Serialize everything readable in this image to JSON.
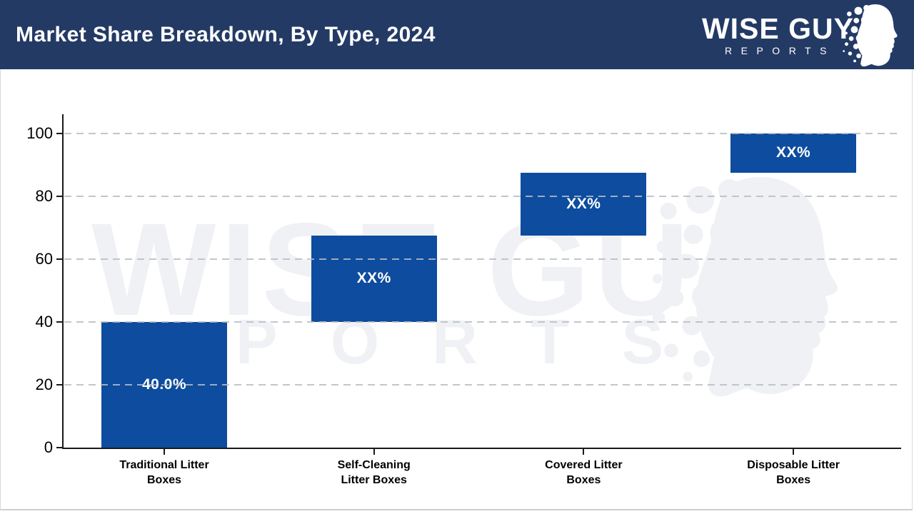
{
  "header": {
    "title": "Market Share Breakdown, By Type, 2024",
    "brand": {
      "name": "WISE GUY",
      "sub": "REPORTS"
    }
  },
  "watermark": {
    "line1": "WISE GU",
    "line2": "PORTS"
  },
  "chart_data": {
    "type": "bar",
    "variant": "waterfall",
    "title": "Market Share Breakdown, By Type, 2024",
    "categories": [
      "Traditional Litter Boxes",
      "Self-Cleaning Litter Boxes",
      "Covered Litter Boxes",
      "Disposable Litter Boxes"
    ],
    "category_lines": [
      [
        "Traditional Litter",
        "Boxes"
      ],
      [
        "Self-Cleaning",
        "Litter Boxes"
      ],
      [
        "Covered Litter",
        "Boxes"
      ],
      [
        "Disposable Litter",
        "Boxes"
      ]
    ],
    "segments": [
      {
        "category": "Traditional Litter Boxes",
        "start": 0,
        "end": 40,
        "value": 40.0,
        "label": "40.0%"
      },
      {
        "category": "Self-Cleaning Litter Boxes",
        "start": 40,
        "end": 67.5,
        "value": 27.5,
        "label": "XX%"
      },
      {
        "category": "Covered Litter Boxes",
        "start": 67.5,
        "end": 87.5,
        "value": 20.0,
        "label": "XX%"
      },
      {
        "category": "Disposable Litter Boxes",
        "start": 87.5,
        "end": 100,
        "value": 12.5,
        "label": "XX%"
      }
    ],
    "ylim": [
      0,
      100
    ],
    "yticks": [
      0,
      20,
      40,
      60,
      80,
      100
    ],
    "grid": "horizontal-dashed",
    "legend": "none",
    "xlabel": "",
    "ylabel": "",
    "bar_color": "#0d4c9e",
    "bar_label_color": "#ffffff"
  },
  "colors": {
    "header_bg": "#233a65",
    "bar": "#0d4c9e",
    "axis": "#1a1a1a",
    "gridline": "#c9cdd4",
    "watermark": "#eff1f5",
    "panel_border": "#d9d9d9"
  }
}
